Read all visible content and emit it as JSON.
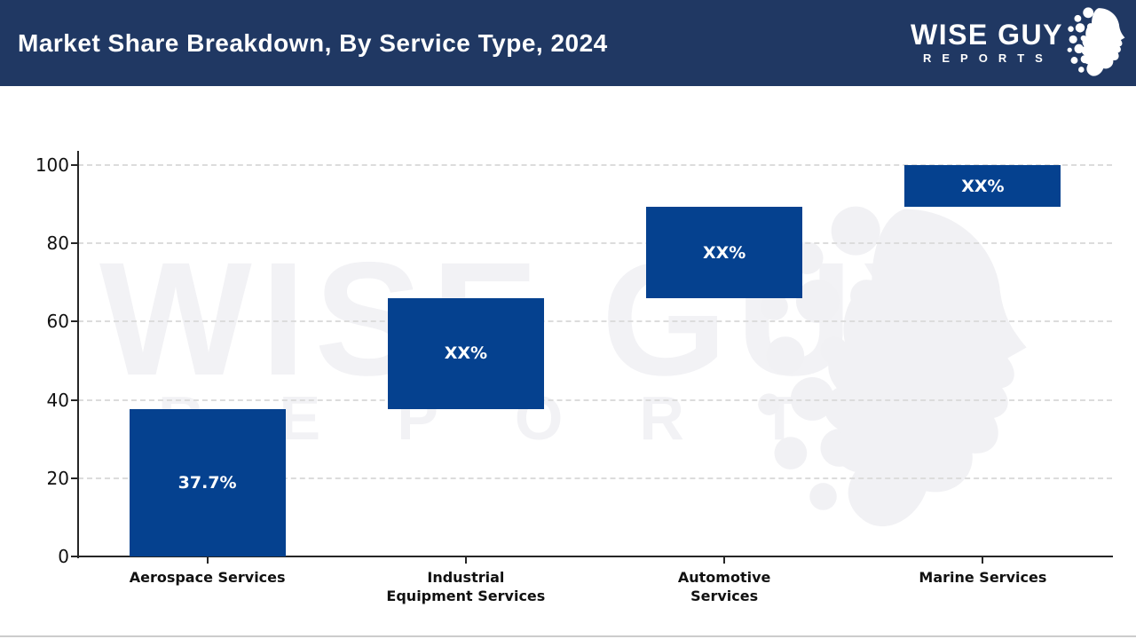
{
  "header": {
    "title": "Market Share Breakdown, By Service Type, 2024",
    "logo": {
      "line1": "WISE GUY",
      "line2": "REPORTS",
      "icon": "wiseguy-face-logo"
    }
  },
  "watermark": {
    "line1": "WISE GUY",
    "line2": "REPORTS"
  },
  "colors": {
    "header_bg": "#203863",
    "bar": "#05418f",
    "bar_label": "#ffffff",
    "axis": "#262626",
    "gridline": "#dcdcdc",
    "watermark": "#f2f2f5"
  },
  "chart_data": {
    "type": "bar",
    "variant": "waterfall",
    "title": "Market Share Breakdown, By Service Type, 2024",
    "categories": [
      "Aerospace Services",
      "Industrial\nEquipment Services",
      "Automotive\nServices",
      "Marine Services"
    ],
    "series": [
      {
        "name": "Market share (%)",
        "segments": [
          {
            "category": "Aerospace Services",
            "start": 0,
            "end": 37.7,
            "label": "37.7%"
          },
          {
            "category": "Industrial Equipment Services",
            "start": 37.7,
            "end": 66,
            "label": "XX%"
          },
          {
            "category": "Automotive Services",
            "start": 66,
            "end": 89.3,
            "label": "XX%"
          },
          {
            "category": "Marine Services",
            "start": 89.3,
            "end": 100,
            "label": "XX%"
          }
        ]
      }
    ],
    "xlabel": "",
    "ylabel": "",
    "ylim": [
      0,
      100
    ],
    "yticks": [
      0,
      20,
      40,
      60,
      80,
      100
    ],
    "grid": "horizontal-dashed",
    "legend": "none"
  }
}
